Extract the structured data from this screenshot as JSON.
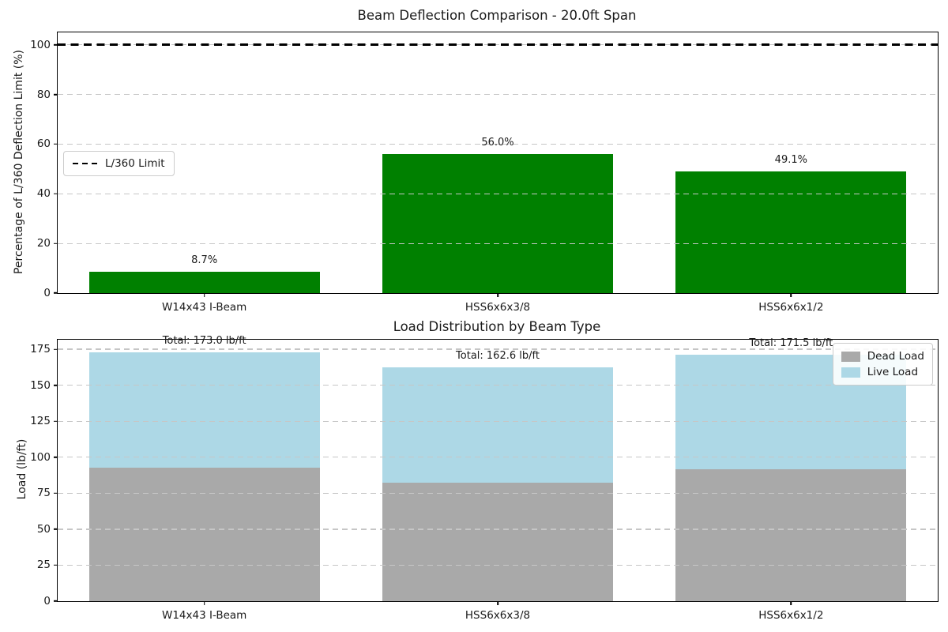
{
  "chart_data": [
    {
      "type": "bar",
      "title": "Beam Deflection Comparison - 20.0ft Span",
      "ylabel": "Percentage of L/360 Deflection Limit (%)",
      "categories": [
        "W14x43 I-Beam",
        "HSS6x6x3/8",
        "HSS6x6x1/2"
      ],
      "values": [
        8.7,
        56.0,
        49.1
      ],
      "bar_labels": [
        "8.7%",
        "56.0%",
        "49.1%"
      ],
      "bar_color": "#008000",
      "yticks": [
        0,
        20,
        40,
        60,
        80,
        100
      ],
      "ylim": [
        0,
        105
      ],
      "grid": true,
      "grid_style": "dashed",
      "reference_line": {
        "value": 100,
        "label": "L/360 Limit",
        "color": "#000000",
        "style": "dashed"
      },
      "legend_position": "center-left"
    },
    {
      "type": "bar",
      "stacked": true,
      "title": "Load Distribution by Beam Type",
      "ylabel": "Load (lb/ft)",
      "categories": [
        "W14x43 I-Beam",
        "HSS6x6x3/8",
        "HSS6x6x1/2"
      ],
      "series": [
        {
          "name": "Dead Load",
          "color": "#a9a9a9",
          "values": [
            93.0,
            82.6,
            91.5
          ]
        },
        {
          "name": "Live Load",
          "color": "#add8e6",
          "values": [
            80.0,
            80.0,
            80.0
          ]
        }
      ],
      "totals": [
        173.0,
        162.6,
        171.5
      ],
      "total_labels": [
        "Total: 173.0 lb/ft",
        "Total: 162.6 lb/ft",
        "Total: 171.5 lb/ft"
      ],
      "yticks": [
        0,
        25,
        50,
        75,
        100,
        125,
        150,
        175
      ],
      "ylim": [
        0,
        181.65
      ],
      "grid": true,
      "grid_style": "dashed",
      "legend_position": "upper-right"
    }
  ]
}
